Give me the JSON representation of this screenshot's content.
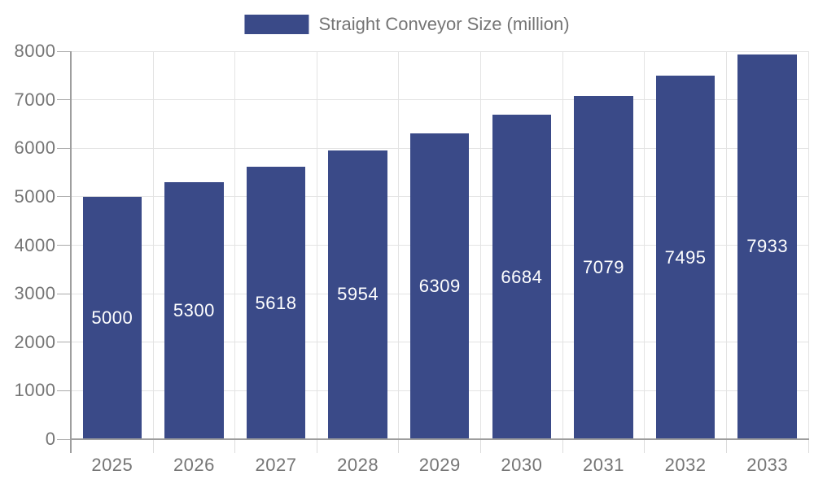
{
  "legend": {
    "label": "Straight Conveyor Size (million)"
  },
  "chart_data": {
    "type": "bar",
    "title": "Straight Conveyor Size (million)",
    "categories": [
      "2025",
      "2026",
      "2027",
      "2028",
      "2029",
      "2030",
      "2031",
      "2032",
      "2033"
    ],
    "values": [
      5000,
      5300,
      5618,
      5954,
      6309,
      6684,
      7079,
      7495,
      7933
    ],
    "xlabel": "",
    "ylabel": "",
    "ylim": [
      0,
      8000
    ],
    "ytick_step": 1000,
    "yticks": [
      0,
      1000,
      2000,
      3000,
      4000,
      5000,
      6000,
      7000,
      8000
    ],
    "grid": true,
    "legend_position": "top-center",
    "value_label_position": "inside-center",
    "colors": {
      "bar": "#3a4a88",
      "value_label": "#ffffff",
      "axis_line": "#9e9e9e",
      "y_tick": "#aaaaaa",
      "x_tick": "#dcdcdc",
      "gridline": "#e3e3e3",
      "tick_text": "#757575",
      "legend_text": "#757575",
      "background": "#ffffff"
    }
  }
}
